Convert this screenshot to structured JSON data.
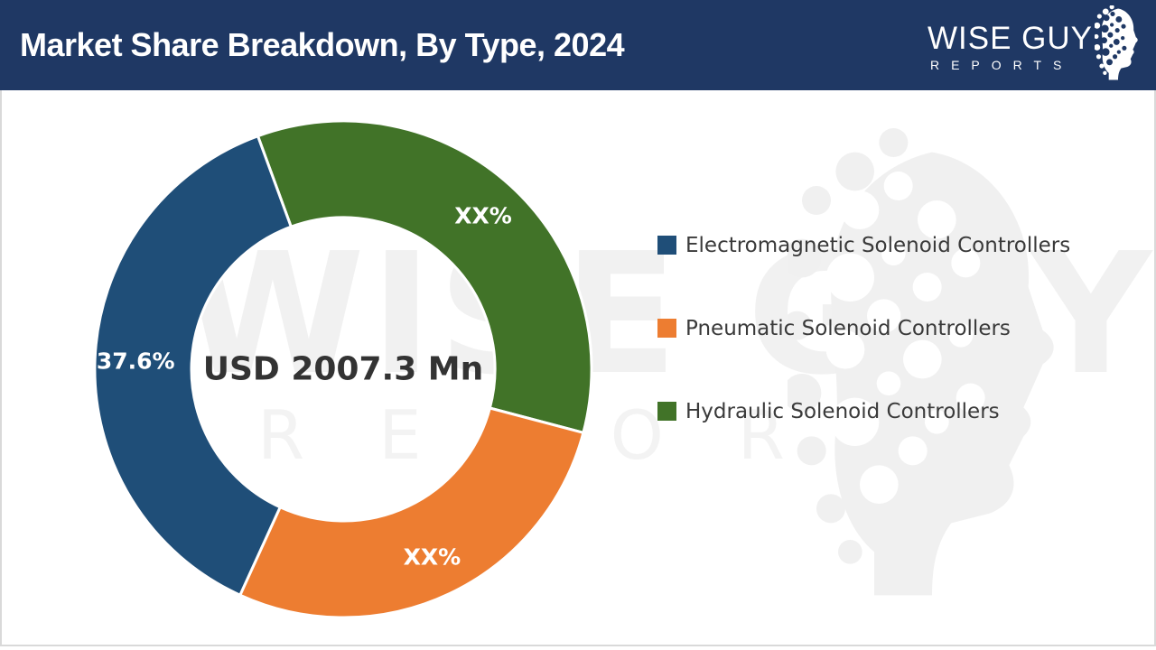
{
  "header": {
    "title": "Market Share Breakdown, By Type, 2024",
    "background_color": "#1F3864",
    "logo": {
      "line1": "WISE GUY",
      "line2": "REPORTS"
    }
  },
  "watermark": {
    "line1": "WISE GUY",
    "line2": "REPORTS"
  },
  "chart_data": {
    "type": "pie",
    "subtype": "donut",
    "title": "Market Share Breakdown, By Type, 2024",
    "center_label": "USD 2007.3 Mn",
    "legend_position": "right",
    "inner_radius_ratio": 0.61,
    "rotation_deg_cw_from_top": -20.1,
    "segments": [
      {
        "label": "Electromagnetic Solenoid Controllers",
        "value_pct": 37.6,
        "data_label": "37.6%",
        "color": "#1F4E78",
        "estimated": false
      },
      {
        "label": "Pneumatic Solenoid Controllers",
        "value_pct": 27.7,
        "data_label": "XX%",
        "color": "#ED7D31",
        "estimated": true
      },
      {
        "label": "Hydraulic Solenoid Controllers",
        "value_pct": 34.7,
        "data_label": "XX%",
        "color": "#417328",
        "estimated": true
      }
    ]
  }
}
